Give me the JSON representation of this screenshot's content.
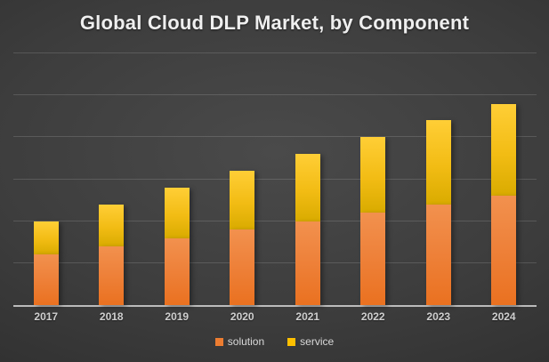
{
  "chart_data": {
    "type": "bar",
    "stacked": true,
    "title": "Global Cloud DLP Market, by Component",
    "categories": [
      "2017",
      "2018",
      "2019",
      "2020",
      "2021",
      "2022",
      "2023",
      "2024"
    ],
    "series": [
      {
        "name": "solution",
        "color": "#ED7D31",
        "values": [
          1.2,
          1.4,
          1.6,
          1.8,
          2.0,
          2.2,
          2.4,
          2.6
        ]
      },
      {
        "name": "service",
        "color": "#FFC000",
        "values": [
          0.8,
          1.0,
          1.2,
          1.4,
          1.6,
          1.8,
          2.0,
          2.2
        ]
      }
    ],
    "totals": [
      2.0,
      2.4,
      2.8,
      3.2,
      3.6,
      4.0,
      4.4,
      4.8
    ],
    "xlabel": "",
    "ylabel": "",
    "ylim": [
      0,
      6
    ],
    "gridline_count": 6,
    "grid": true,
    "y_tick_labels_visible": false,
    "legend_position": "bottom",
    "background_color": "#3d3d3d",
    "title_color": "#efefef",
    "axis_line_color": "#c8c8c8",
    "tick_label_color": "#cfcfcf"
  }
}
